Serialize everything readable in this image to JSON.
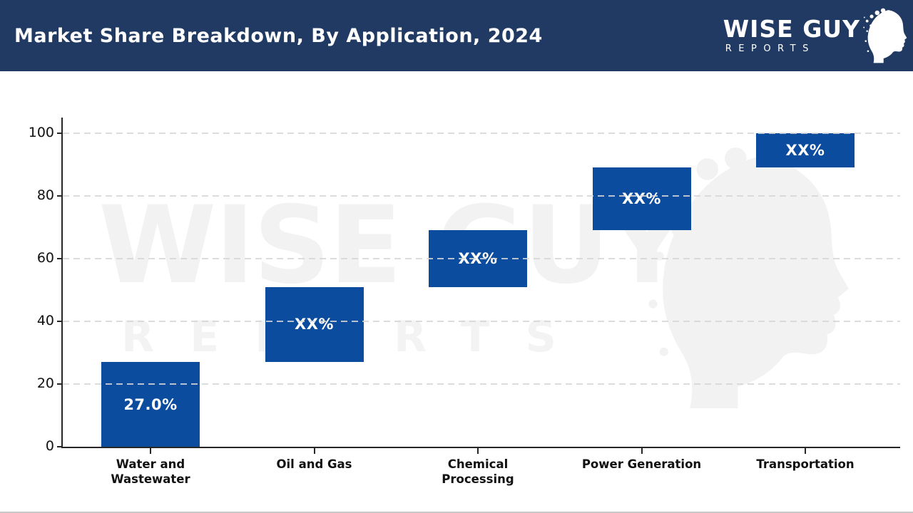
{
  "header": {
    "title": "Market Share Breakdown, By Application, 2024",
    "logo": {
      "line1": "WISE GUY",
      "line2": "REPORTS"
    }
  },
  "watermark": {
    "line1": "WISE GUY",
    "line2": "REPORTS"
  },
  "chart_data": {
    "type": "bar",
    "subtype": "floating-waterfall",
    "title": "Market Share Breakdown, By Application, 2024",
    "categories": [
      "Water and Wastewater",
      "Oil and Gas",
      "Chemical Processing",
      "Power Generation",
      "Transportation"
    ],
    "tick_labels": [
      "Water and\nWastewater",
      "Oil and Gas",
      "Chemical\nProcessing",
      "Power Generation",
      "Transportation"
    ],
    "series": [
      {
        "name": "Market Share (%)",
        "values": [
          27,
          24,
          18,
          20,
          11
        ]
      }
    ],
    "bar_bases": [
      0,
      27,
      51,
      69,
      89
    ],
    "bar_tops": [
      27,
      51,
      69,
      89,
      100
    ],
    "bar_labels": [
      "27.0%",
      "XX%",
      "XX%",
      "XX%",
      "XX%"
    ],
    "ylim": [
      0,
      100
    ],
    "yticks": [
      0,
      20,
      40,
      60,
      80,
      100
    ],
    "xlabel": "",
    "ylabel": "",
    "grid": "horizontal-dashed",
    "legend": "none",
    "bar_color": "#0B4C9F",
    "header_color": "#213A63",
    "gridline_color": "#d6d6d6",
    "watermark_color": "#f2f2f2"
  }
}
